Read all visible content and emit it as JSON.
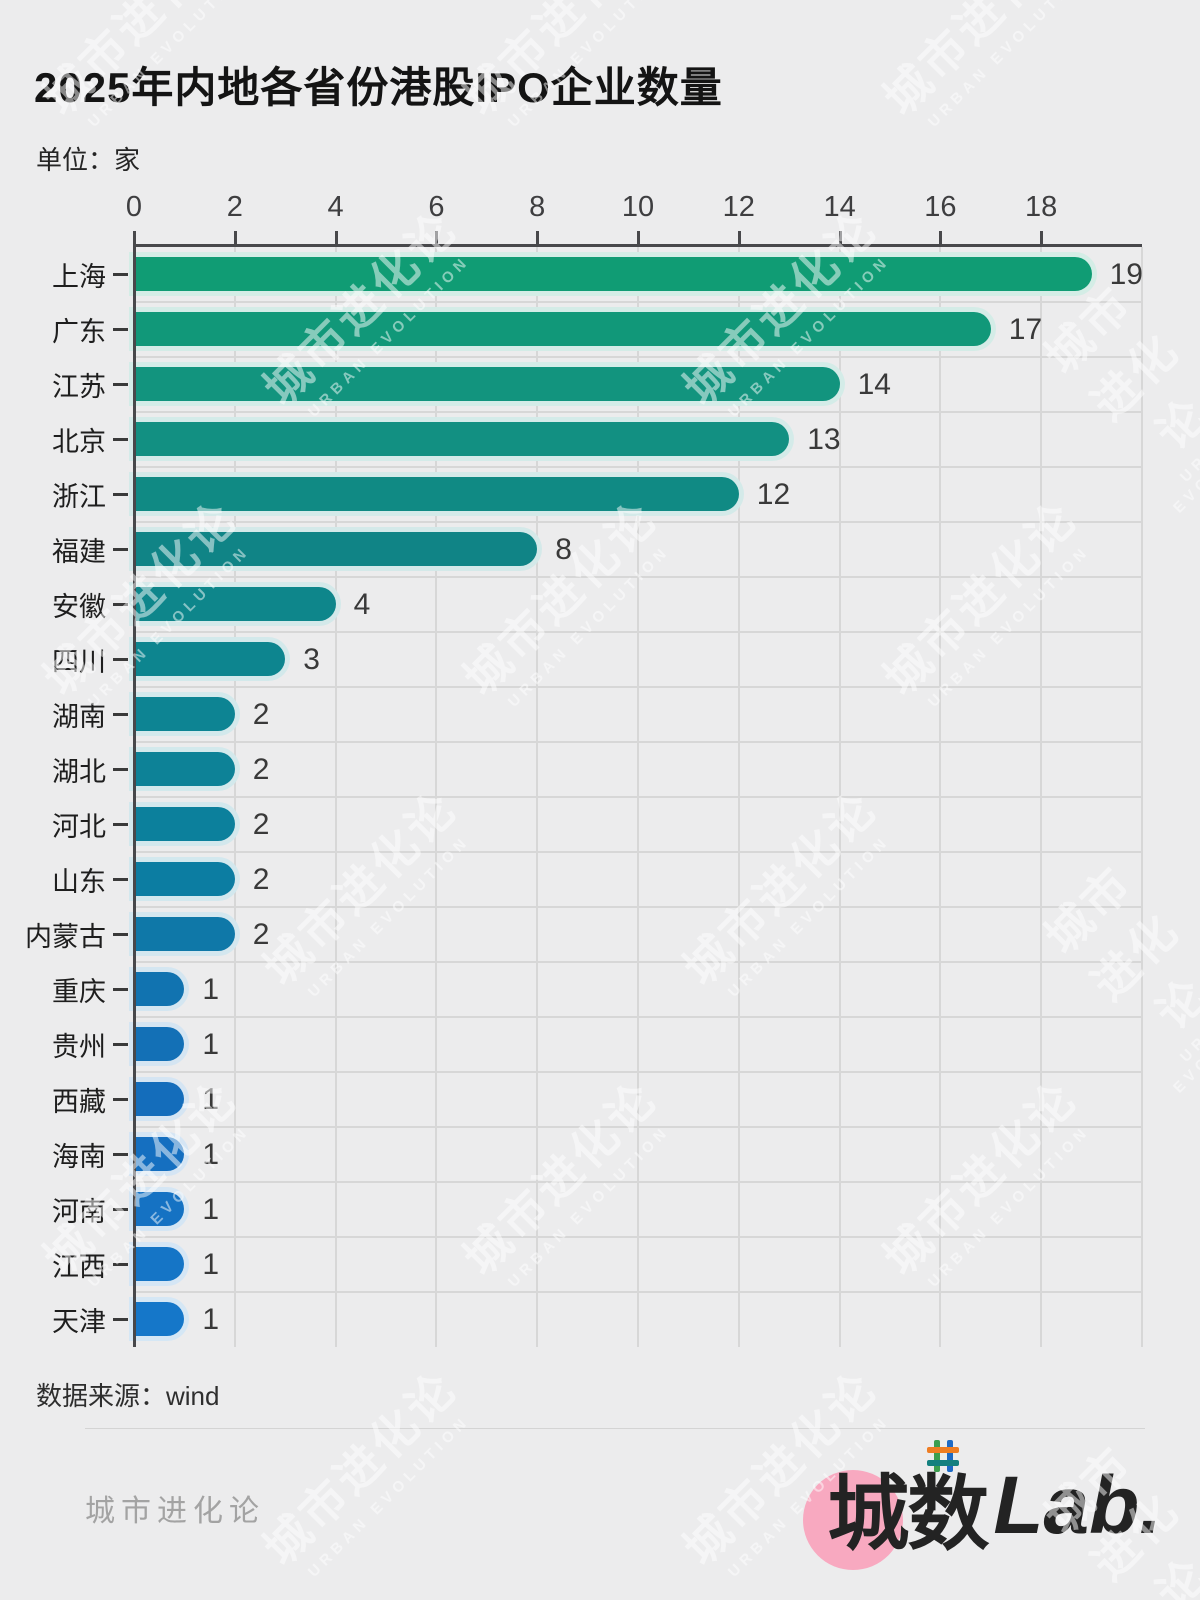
{
  "header": {
    "title": "2025年内地各省份港股IPO企业数量",
    "unit_label": "单位：家"
  },
  "chart_data": {
    "type": "bar",
    "orientation": "horizontal",
    "title": "2025年内地各省份港股IPO企业数量",
    "unit": "家",
    "categories": [
      "上海",
      "广东",
      "江苏",
      "北京",
      "浙江",
      "福建",
      "安徽",
      "四川",
      "湖南",
      "湖北",
      "河北",
      "山东",
      "内蒙古",
      "重庆",
      "贵州",
      "西藏",
      "海南",
      "河南",
      "江西",
      "天津"
    ],
    "values": [
      19,
      17,
      14,
      13,
      12,
      8,
      4,
      3,
      2,
      2,
      2,
      2,
      2,
      1,
      1,
      1,
      1,
      1,
      1,
      1
    ],
    "bar_colors": [
      "#109c74",
      "#119879",
      "#12947e",
      "#129082",
      "#108a84",
      "#108486",
      "#0e868b",
      "#0d858f",
      "#0d8493",
      "#0d8297",
      "#0c809c",
      "#0c7da2",
      "#0f78a8",
      "#1173b0",
      "#1370b6",
      "#146dbb",
      "#156fc0",
      "#1572c3",
      "#1575c6",
      "#1577c9"
    ],
    "xlim": [
      0,
      20
    ],
    "x_ticks": [
      0,
      2,
      4,
      6,
      8,
      10,
      12,
      14,
      16,
      18
    ],
    "grid": true,
    "value_labels": true,
    "legend": false
  },
  "source": {
    "label": "数据来源：wind"
  },
  "footer": {
    "left_text": "城市进化论",
    "logo_text_cn": "城数",
    "logo_text_latin": "Lab.",
    "logo_circle_color": "#f8a9c0"
  },
  "watermark": {
    "cn": "城市进化论",
    "en": "URBAN EVOLUTION"
  },
  "colors": {
    "background": "#ececed",
    "axis": "#48484b",
    "grid": "#d7d7d7",
    "title_text": "#141414",
    "value_label_text": "#393939",
    "footer_text": "#a3a3a3"
  }
}
